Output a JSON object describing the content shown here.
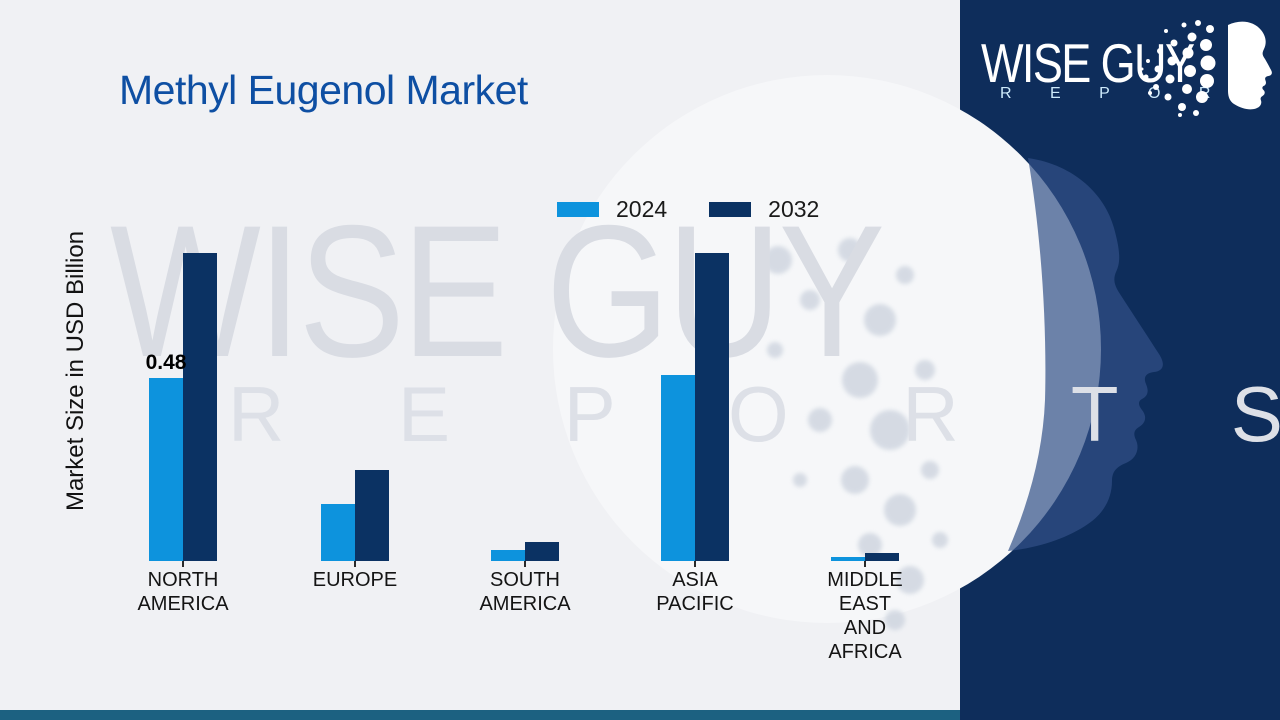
{
  "page": {
    "background": "#f0f1f4",
    "bottom_strip_color": "#1c6181",
    "panel_color": "#0e2d5b",
    "circle_color": "#f6f7f9",
    "face_overlay_color": "rgba(50,80,135,0.7)"
  },
  "header": {
    "title": "Methyl Eugenol Market",
    "title_color": "#0e4fa3"
  },
  "brand": {
    "line1": "WISE GUY",
    "line2": "R E P O R T S"
  },
  "watermark": {
    "line1": "WISE GUY",
    "line2": "R E P O R T S"
  },
  "chart_data": {
    "type": "bar",
    "title": "Methyl Eugenol Market",
    "ylabel": "Market Size in USD Billion",
    "xlabel": "",
    "ylim": [
      0,
      0.9
    ],
    "grid": false,
    "legend_position": "top",
    "categories": [
      "NORTH AMERICA",
      "EUROPE",
      "SOUTH AMERICA",
      "ASIA PACIFIC",
      "MIDDLE EAST AND AFRICA"
    ],
    "category_lines": [
      [
        "NORTH",
        "AMERICA"
      ],
      [
        "EUROPE"
      ],
      [
        "SOUTH",
        "AMERICA"
      ],
      [
        "ASIA",
        "PACIFIC"
      ],
      [
        "MIDDLE",
        "EAST",
        "AND",
        "AFRICA"
      ]
    ],
    "series": [
      {
        "name": "2024",
        "color": "#0d93dd",
        "values": [
          0.48,
          0.15,
          0.03,
          0.49,
          0.01
        ]
      },
      {
        "name": "2032",
        "color": "#0b3263",
        "values": [
          0.81,
          0.24,
          0.05,
          0.81,
          0.02
        ]
      }
    ],
    "data_labels": [
      {
        "series_index": 0,
        "category_index": 0,
        "text": "0.48"
      }
    ]
  }
}
